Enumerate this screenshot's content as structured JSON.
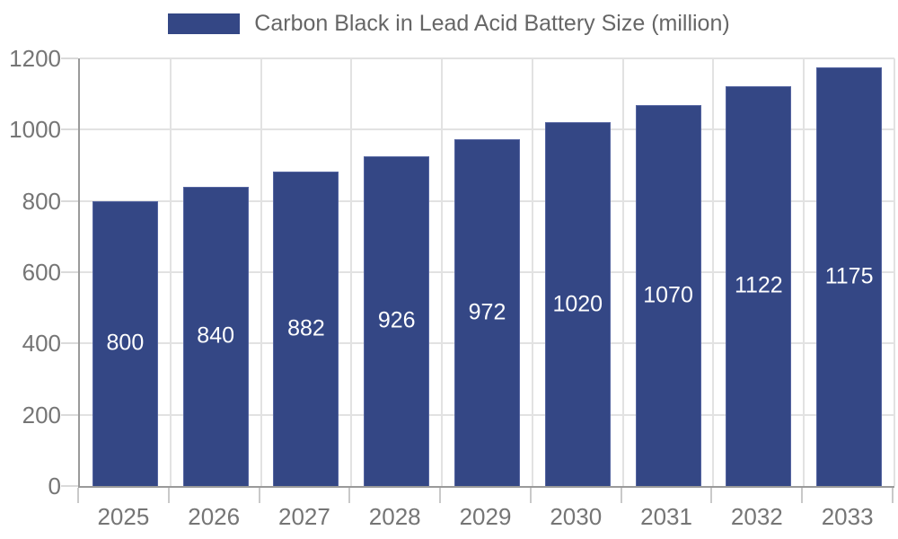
{
  "chart_data": {
    "type": "bar",
    "title": "Carbon Black in Lead Acid Battery Size (million)",
    "legend": {
      "label": "Carbon Black in Lead Acid Battery Size (million)",
      "position": "top"
    },
    "categories": [
      "2025",
      "2026",
      "2027",
      "2028",
      "2029",
      "2030",
      "2031",
      "2032",
      "2033"
    ],
    "values": [
      800,
      840,
      882,
      926,
      972,
      1020,
      1070,
      1122,
      1175
    ],
    "value_labels": [
      "800",
      "840",
      "882",
      "926",
      "972",
      "1020",
      "1070",
      "1122",
      "1175"
    ],
    "xlabel": "",
    "ylabel": "",
    "ylim": [
      0,
      1200
    ],
    "ytick_step": 200,
    "ytick_labels": [
      "0",
      "200",
      "400",
      "600",
      "800",
      "1000",
      "1200"
    ],
    "grid": "on",
    "colors": {
      "bar_fill": "#344785",
      "bar_border": "#5565a1",
      "bar_label_text": "#ffffff",
      "axis_line": "#9a9a9a",
      "gridline": "#e2e2e2",
      "tick_label_text": "#757575",
      "legend_text": "#666666",
      "background": "#ffffff"
    }
  }
}
